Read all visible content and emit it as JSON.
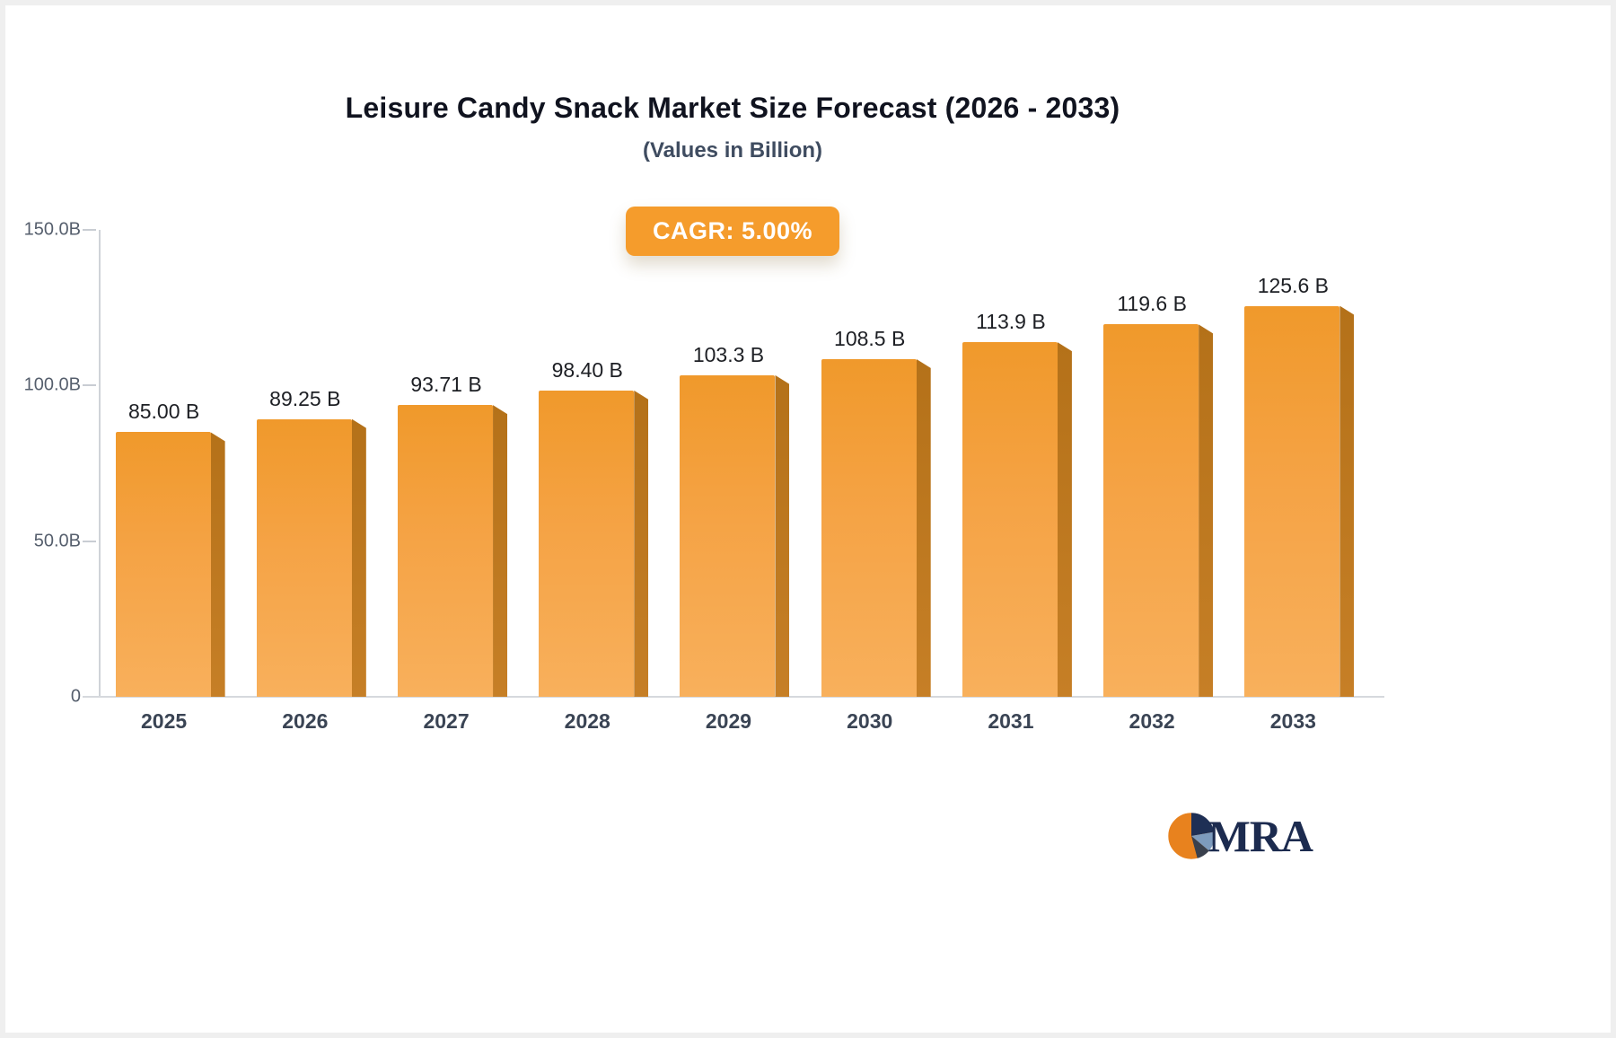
{
  "chart_data": {
    "type": "bar",
    "title": "Leisure Candy Snack Market Size Forecast (2026 - 2033)",
    "subtitle": "(Values in Billion)",
    "badge_label": "CAGR: 5.00%",
    "categories": [
      "2025",
      "2026",
      "2027",
      "2028",
      "2029",
      "2030",
      "2031",
      "2032",
      "2033"
    ],
    "values": [
      85.0,
      89.25,
      93.71,
      98.4,
      103.3,
      108.5,
      113.9,
      119.6,
      125.6
    ],
    "value_labels": [
      "85.00 B",
      "89.25 B",
      "93.71 B",
      "98.40 B",
      "103.3 B",
      "108.5 B",
      "113.9 B",
      "119.6 B",
      "125.6 B"
    ],
    "xlabel": "",
    "ylabel": "",
    "ylim": [
      0,
      150
    ],
    "yticks": [
      {
        "value": 150,
        "label": "150.0B"
      },
      {
        "value": 100,
        "label": "100.0B"
      },
      {
        "value": 50,
        "label": "50.0B"
      },
      {
        "value": 0,
        "label": "0"
      }
    ],
    "grid": false,
    "legend": false,
    "bar_colors": {
      "front_top": "#F0992B",
      "front_bottom": "#F8B05C",
      "side": "#BA7620"
    },
    "badge_color": "#F59C2C"
  },
  "logo": {
    "text": "MRA"
  }
}
